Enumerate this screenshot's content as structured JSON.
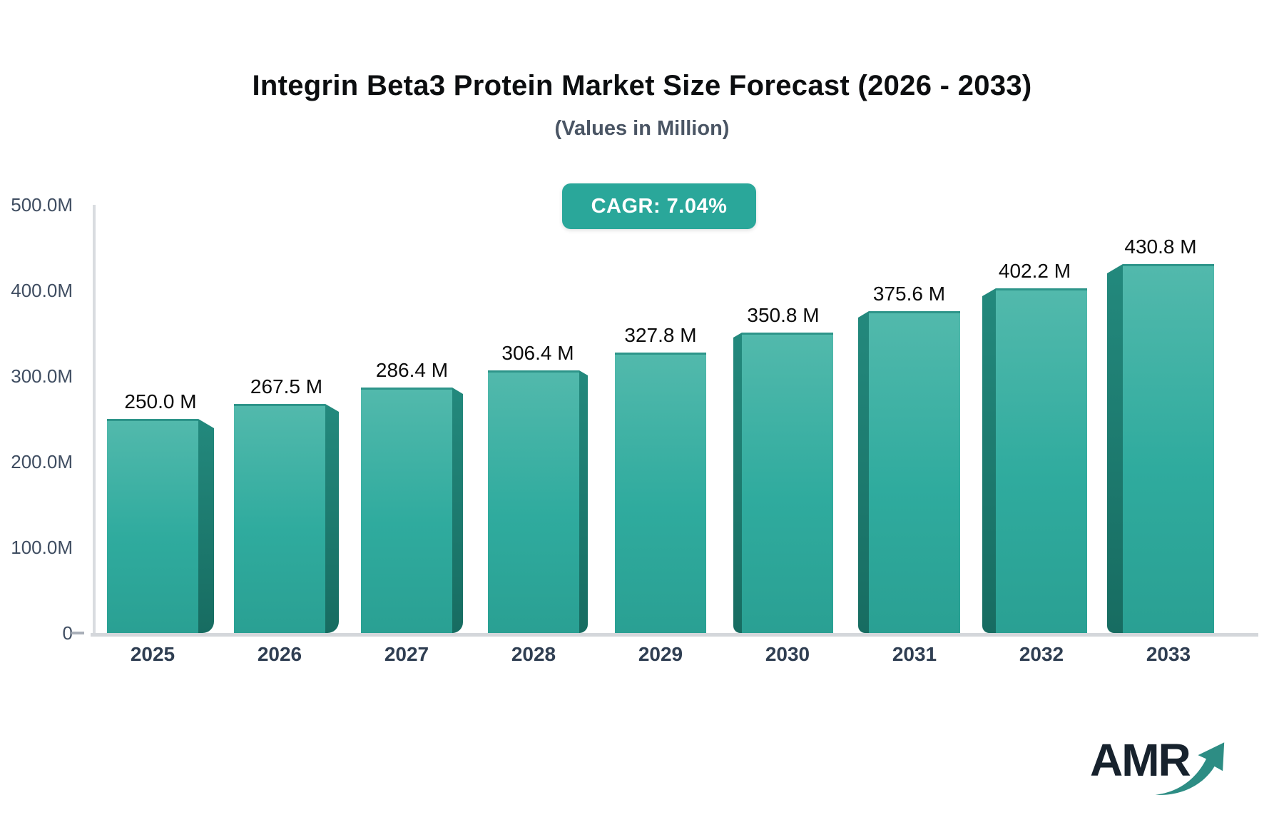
{
  "badge": {
    "label": "CAGR: 7.04%"
  },
  "logo": {
    "text": "AMR",
    "icon": "growth-arrow-icon"
  },
  "colors": {
    "accent_teal": "#2aa79a",
    "bar_face_top": "#52b9ac",
    "bar_face_bottom": "#2aa093",
    "bar_side_dark": "#1d7d72",
    "axis_gray": "#d5d8dc",
    "value_label": "#0b0b0b",
    "tick_label": "#3f4d61",
    "year_label": "#2f3e52",
    "logo_text": "#17222d",
    "logo_arrow": "#2d8d84"
  },
  "chart_data": {
    "type": "bar",
    "title": "Integrin Beta3 Protein Market Size Forecast (2026 - 2033)",
    "subtitle": "(Values in Million)",
    "unit": "Million",
    "categories": [
      "2025",
      "2026",
      "2027",
      "2028",
      "2029",
      "2030",
      "2031",
      "2032",
      "2033"
    ],
    "values": [
      250.0,
      267.5,
      286.4,
      306.4,
      327.8,
      350.8,
      375.6,
      402.2,
      430.8
    ],
    "bar_labels": [
      "250.0 M",
      "267.5 M",
      "286.4 M",
      "306.4 M",
      "327.8 M",
      "350.8 M",
      "375.6 M",
      "402.2 M",
      "430.8 M"
    ],
    "cagr": "7.04%",
    "ylim": [
      0,
      500
    ],
    "grid": false,
    "legend": null,
    "yticks": [
      {
        "label": "500.0M",
        "value": 500
      },
      {
        "label": "400.0M",
        "value": 400
      },
      {
        "label": "300.0M",
        "value": 300
      },
      {
        "label": "200.0M",
        "value": 200
      },
      {
        "label": "100.0M",
        "value": 100
      },
      {
        "label": "0",
        "value": 0
      }
    ]
  }
}
